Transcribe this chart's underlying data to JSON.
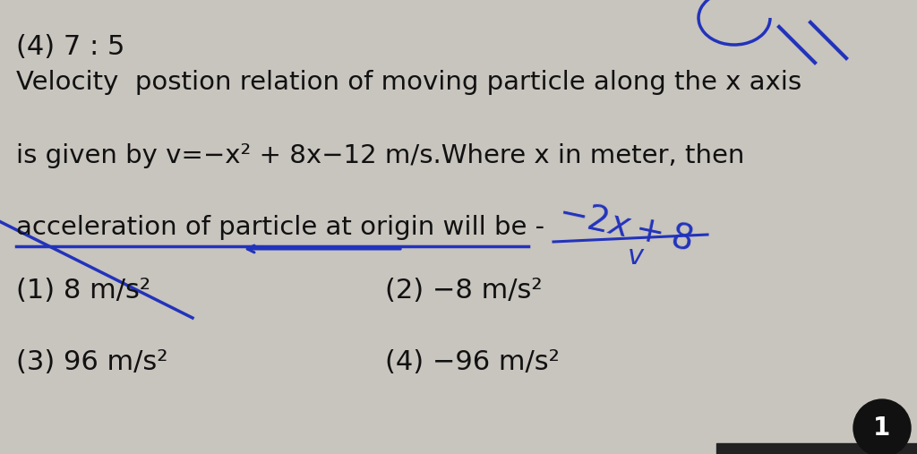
{
  "background_color": "#c8c4be",
  "header_text": "(4) 7 : 5",
  "line1": "Velocity  postion relation of moving particle along the x axis",
  "line2": "is given by v=−x² + 8x−12 m/s.Where x in meter, then",
  "line3": "acceleration of particle at origin will be -",
  "option1": "(1) 8 m/s²",
  "option2": "(2) −8 m/s²",
  "option3": "(3) 96 m/s²",
  "option4": "(4) −96 m/s²",
  "text_color": "#111111",
  "blue_color": "#2233bb",
  "fs_header": 22,
  "fs_main": 21,
  "fs_option": 22
}
